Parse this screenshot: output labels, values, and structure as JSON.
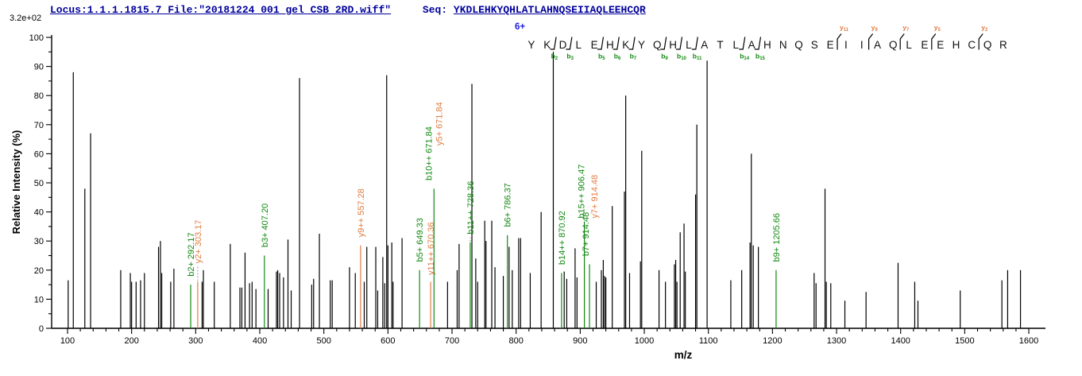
{
  "header": {
    "locus_file": "Locus:1.1.1.1815.7 File:\"20181224_001_gel_CSB_2RD.wiff\"",
    "seq_label": "Seq:",
    "sequence": "YKDLEHKYQHLATLAHNQSEIIAQLEEHCQR"
  },
  "y_axis": {
    "title": "Relative  Intensity (%)",
    "scale_note": "3.2e+02",
    "min": 0,
    "max": 100,
    "major_step": 10,
    "minor_step": 5
  },
  "x_axis": {
    "title": "m/z",
    "min": 100,
    "max": 1600,
    "major_step": 100,
    "minor_step": 20
  },
  "colors": {
    "b_ion": "#128912",
    "y_ion": "#e07c42",
    "peak": "#000000",
    "header_text": "#00009c",
    "charge_label": "#2020dd",
    "leader_dash": "#999999"
  },
  "chart_data": {
    "type": "bar",
    "subtype": "centroid MS/MS spectrum (stem plot)",
    "title": "",
    "xlabel": "m/z",
    "ylabel": "Relative  Intensity (%)",
    "xlim": [
      75,
      1625
    ],
    "ylim": [
      0,
      100
    ],
    "grid": false,
    "absolute_intensity_scale": "3.2e+02",
    "peaks": [
      [
        101,
        16.5
      ],
      [
        109,
        88
      ],
      [
        127,
        48
      ],
      [
        136,
        67
      ],
      [
        183,
        20
      ],
      [
        198,
        19
      ],
      [
        200,
        16
      ],
      [
        207,
        16
      ],
      [
        214,
        16.5
      ],
      [
        220,
        19
      ],
      [
        242,
        28
      ],
      [
        245,
        30
      ],
      [
        247,
        19
      ],
      [
        261,
        16
      ],
      [
        266,
        20.5
      ],
      [
        310,
        16
      ],
      [
        312,
        20
      ],
      [
        329,
        16
      ],
      [
        354,
        29
      ],
      [
        369,
        14
      ],
      [
        372,
        14
      ],
      [
        377,
        26
      ],
      [
        384,
        15.5
      ],
      [
        388,
        16
      ],
      [
        394,
        13.5
      ],
      [
        413,
        13.5
      ],
      [
        426,
        19.5
      ],
      [
        428,
        20
      ],
      [
        431,
        19
      ],
      [
        437,
        17.5
      ],
      [
        444,
        30.5
      ],
      [
        449,
        13
      ],
      [
        462,
        86
      ],
      [
        481,
        15
      ],
      [
        484,
        17
      ],
      [
        493,
        32.5
      ],
      [
        510,
        16.5
      ],
      [
        513,
        16.5
      ],
      [
        540,
        21
      ],
      [
        549,
        19
      ],
      [
        563,
        16
      ],
      [
        567,
        28
      ],
      [
        581,
        28
      ],
      [
        584,
        13
      ],
      [
        592,
        24.5
      ],
      [
        595,
        15.5
      ],
      [
        598,
        87
      ],
      [
        600,
        28.5
      ],
      [
        606,
        29.5
      ],
      [
        608,
        16
      ],
      [
        622,
        31
      ],
      [
        693,
        16
      ],
      [
        708,
        20
      ],
      [
        711,
        29
      ],
      [
        731,
        84
      ],
      [
        737,
        24
      ],
      [
        740,
        16
      ],
      [
        751,
        37
      ],
      [
        753,
        30
      ],
      [
        762,
        37
      ],
      [
        767,
        21
      ],
      [
        780,
        18
      ],
      [
        789,
        28
      ],
      [
        794,
        20
      ],
      [
        804,
        31
      ],
      [
        807,
        31
      ],
      [
        822,
        19
      ],
      [
        839,
        40
      ],
      [
        858,
        95
      ],
      [
        875,
        19.5
      ],
      [
        879,
        17
      ],
      [
        892,
        27.5
      ],
      [
        895,
        17.5
      ],
      [
        925,
        16
      ],
      [
        933,
        20
      ],
      [
        936,
        23.5
      ],
      [
        938,
        18
      ],
      [
        940,
        17.5
      ],
      [
        950,
        42
      ],
      [
        969,
        47
      ],
      [
        971,
        80
      ],
      [
        977,
        19
      ],
      [
        994,
        23
      ],
      [
        996,
        61
      ],
      [
        1023,
        20
      ],
      [
        1033,
        16
      ],
      [
        1047,
        22
      ],
      [
        1049,
        23.5
      ],
      [
        1051,
        16
      ],
      [
        1056,
        33
      ],
      [
        1062,
        36
      ],
      [
        1064,
        19.5
      ],
      [
        1080,
        46
      ],
      [
        1082,
        70
      ],
      [
        1098,
        92
      ],
      [
        1135,
        16.5
      ],
      [
        1152,
        20
      ],
      [
        1165,
        29.5
      ],
      [
        1167,
        60
      ],
      [
        1170,
        28.5
      ],
      [
        1178,
        28
      ],
      [
        1265,
        19
      ],
      [
        1268,
        15.5
      ],
      [
        1282,
        48
      ],
      [
        1284,
        16
      ],
      [
        1291,
        15.5
      ],
      [
        1313,
        9.5
      ],
      [
        1346,
        12.5
      ],
      [
        1396,
        22.5
      ],
      [
        1422,
        16
      ],
      [
        1427,
        9.5
      ],
      [
        1493,
        13
      ],
      [
        1558,
        16.5
      ],
      [
        1567,
        20
      ],
      [
        1587,
        20
      ]
    ],
    "annotations": [
      {
        "ion": "b",
        "label": "b2+ 292.17",
        "mz": 292.17,
        "peak_pct": 15,
        "label_start_pct": 17
      },
      {
        "ion": "y",
        "label": "y2+ 303.17",
        "mz": 303.17,
        "peak_pct": 16,
        "label_start_pct": 21.5,
        "leader": "dash"
      },
      {
        "ion": "b",
        "label": "b3+ 407.20",
        "mz": 407.2,
        "peak_pct": 25,
        "label_start_pct": 27
      },
      {
        "ion": "y",
        "label": "y9++ 557.28",
        "mz": 557.28,
        "peak_pct": 28.5,
        "label_start_pct": 30.5
      },
      {
        "ion": "b",
        "label": "b5+ 649.33",
        "mz": 649.33,
        "peak_pct": 20,
        "label_start_pct": 22
      },
      {
        "ion": "y",
        "label": "y11++ 670.36",
        "mz": 670.36,
        "peak_pct": 16,
        "label_start_pct": 17.5,
        "draw_dx": -3
      },
      {
        "ion": "b",
        "label": "b10++ 671.84",
        "mz": 671.84,
        "peak_pct": 48,
        "label_start_pct": 50,
        "dx": -7
      },
      {
        "ion": "y",
        "label": "y5+ 671.84",
        "mz": 671.84,
        "peak_pct": null,
        "label_start_pct": 62,
        "dx": 6
      },
      {
        "ion": "b",
        "label": "b11++ 728.36",
        "mz": 728.36,
        "peak_pct": 29.5,
        "label_start_pct": 31.5,
        "leader": "dash"
      },
      {
        "ion": "b",
        "label": "b6+ 786.37",
        "mz": 786.37,
        "peak_pct": 32,
        "label_start_pct": 34
      },
      {
        "ion": "b",
        "label": "b14++ 870.92",
        "mz": 870.92,
        "peak_pct": 19,
        "label_start_pct": 21
      },
      {
        "ion": "b",
        "label": "b15++ 906.47",
        "mz": 906.47,
        "peak_pct": 16,
        "label_start_pct": 37,
        "leader": "solid",
        "dx": -4
      },
      {
        "ion": "b",
        "label": "b7+ 914.48",
        "mz": 914.48,
        "peak_pct": 22,
        "label_start_pct": 24,
        "dx": -5
      },
      {
        "ion": "y",
        "label": "y7+ 914.48",
        "mz": 914.48,
        "peak_pct": null,
        "label_start_pct": 37,
        "dx": 6
      },
      {
        "ion": "b",
        "label": "b9+ 1205.66",
        "mz": 1205.66,
        "peak_pct": 20,
        "label_start_pct": 22
      }
    ],
    "sequence_display": {
      "charge": "6+",
      "residues": "YKDLEHKYQHLATLAHNQSEIIAQLEEHCQR",
      "b_marks": [
        {
          "after": 2,
          "sub": "2"
        },
        {
          "after": 3,
          "sub": "3"
        },
        {
          "after": 5,
          "sub": "5"
        },
        {
          "after": 6,
          "sub": "6"
        },
        {
          "after": 7,
          "sub": "7"
        },
        {
          "after": 9,
          "sub": "9"
        },
        {
          "after": 10,
          "sub": "10"
        },
        {
          "after": 11,
          "sub": "11"
        },
        {
          "after": 14,
          "sub": "14"
        },
        {
          "after": 15,
          "sub": "15"
        }
      ],
      "y_marks": [
        {
          "before": 21,
          "sub": "11"
        },
        {
          "before": 23,
          "sub": "9"
        },
        {
          "before": 25,
          "sub": "7"
        },
        {
          "before": 27,
          "sub": "5"
        },
        {
          "before": 30,
          "sub": "2"
        }
      ]
    }
  }
}
